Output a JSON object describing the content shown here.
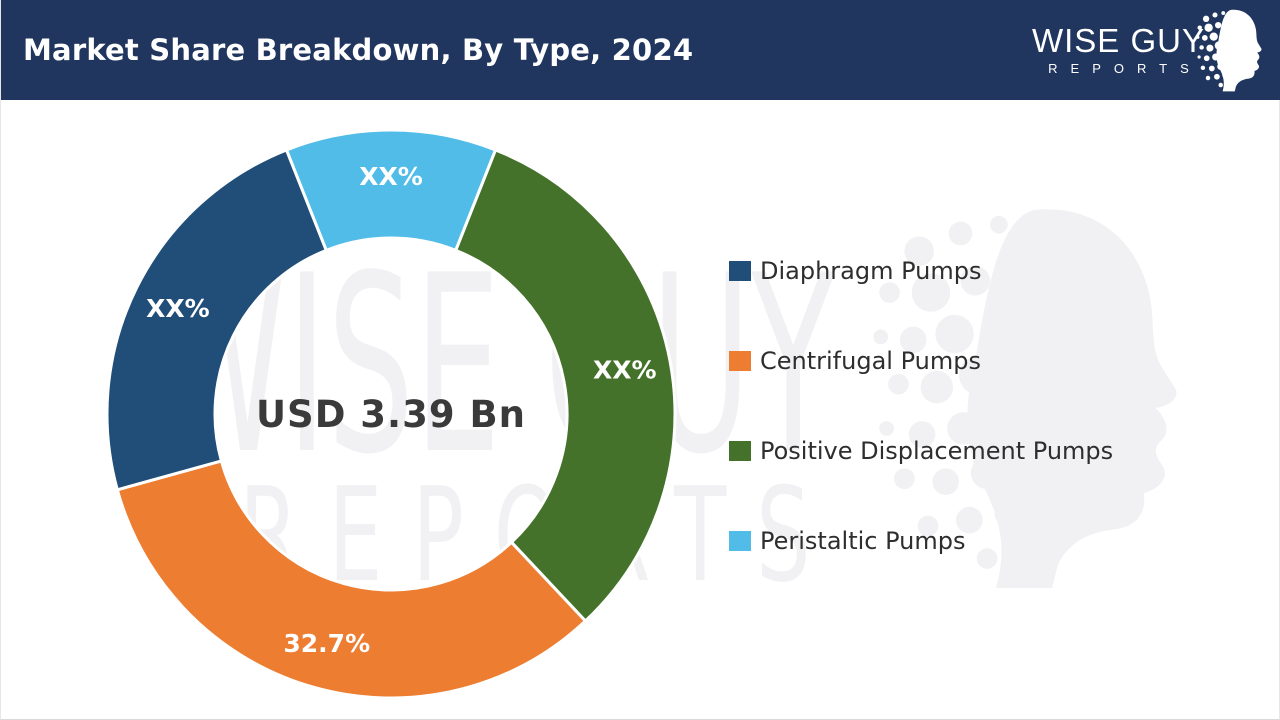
{
  "header": {
    "title": "Market Share Breakdown, By Type, 2024",
    "logo": {
      "line1": "WISE GUY",
      "line2": "REPORTS"
    }
  },
  "watermark": {
    "line1": "WISE GUY",
    "line2": "REPORTS"
  },
  "chart_data": {
    "type": "donut",
    "title": "Market Share Breakdown, By Type, 2024",
    "center_label": "USD 3.39 Bn",
    "start_angle_deg": -21.6,
    "direction": "clockwise",
    "outer_radius_px": 284,
    "inner_radius_px": 176,
    "segments": [
      {
        "label": "Peristaltic Pumps",
        "value_pct": 12.0,
        "display_label": "XX%",
        "color": "#50BCE7"
      },
      {
        "label": "Positive Displacement Pumps",
        "value_pct": 32.0,
        "display_label": "XX%",
        "color": "#45722A"
      },
      {
        "label": "Centrifugal Pumps",
        "value_pct": 32.7,
        "display_label": "32.7%",
        "color": "#ED7D31"
      },
      {
        "label": "Diaphragm Pumps",
        "value_pct": 23.3,
        "display_label": "XX%",
        "color": "#204E78"
      }
    ]
  },
  "legend": {
    "items": [
      {
        "label": "Diaphragm Pumps",
        "color": "#204E78"
      },
      {
        "label": "Centrifugal Pumps",
        "color": "#ED7D31"
      },
      {
        "label": "Positive Displacement Pumps",
        "color": "#45722A"
      },
      {
        "label": "Peristaltic Pumps",
        "color": "#50BCE7"
      }
    ]
  },
  "colors": {
    "header_bg": "#21365F",
    "watermark": "#F1F1F4",
    "center_text": "#3A3A3A",
    "legend_text": "#2E2E2E",
    "segment_divider": "#FFFFFF"
  }
}
